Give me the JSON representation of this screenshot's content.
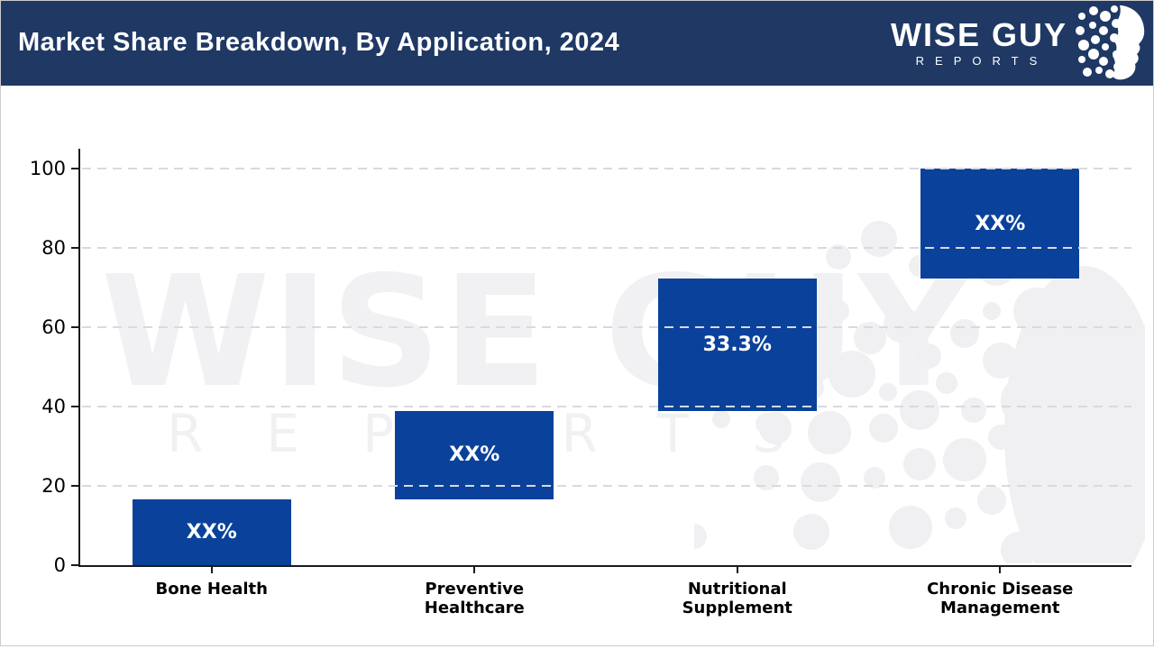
{
  "header": {
    "title": "Market Share Breakdown, By Application, 2024",
    "logo": {
      "brand": "WISE GUY",
      "tagline": "REPORTS"
    }
  },
  "watermark": {
    "brand": "WISE GUY",
    "tagline": "REPORTS"
  },
  "colors": {
    "header_bg": "#1F3864",
    "bar": "#0A429B",
    "grid": "#D9D9DE",
    "axis": "#1A1A1A",
    "watermark": "#F1F1F4"
  },
  "chart_data": {
    "type": "bar",
    "subtype": "waterfall",
    "title": "Market Share Breakdown, By Application, 2024",
    "categories": [
      "Bone Health",
      "Preventive Healthcare",
      "Nutritional Supplement",
      "Chronic Disease Management"
    ],
    "category_label_lines": [
      [
        "Bone Health"
      ],
      [
        "Preventive",
        "Healthcare"
      ],
      [
        "Nutritional",
        "Supplement"
      ],
      [
        "Chronic Disease",
        "Management"
      ]
    ],
    "segments": [
      {
        "category": "Bone Health",
        "start": 0,
        "end": 16.7,
        "value_label": "XX%"
      },
      {
        "category": "Preventive Healthcare",
        "start": 16.7,
        "end": 38.9,
        "value_label": "XX%"
      },
      {
        "category": "Nutritional Supplement",
        "start": 38.9,
        "end": 72.2,
        "value_label": "33.3%"
      },
      {
        "category": "Chronic Disease Management",
        "start": 72.2,
        "end": 100,
        "value_label": "XX%"
      }
    ],
    "ylim": [
      0,
      100
    ],
    "ytick_values": [
      0,
      20,
      40,
      60,
      80,
      100
    ],
    "yticks": [
      "0",
      "20",
      "40",
      "60",
      "80",
      "100"
    ],
    "xlabel": "",
    "ylabel": "",
    "legend": "none",
    "grid": "horizontal-dashed"
  }
}
